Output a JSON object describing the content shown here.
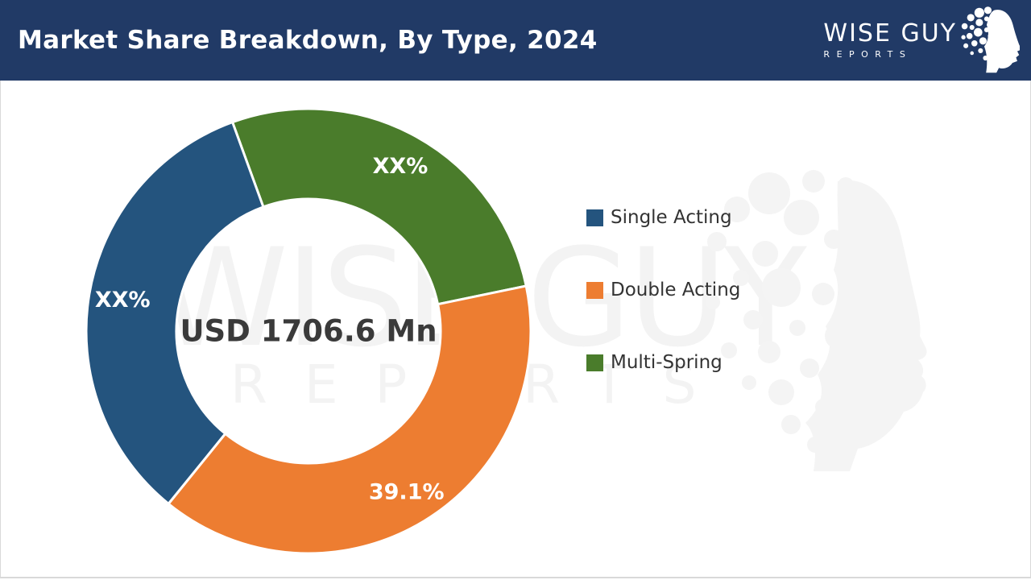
{
  "header": {
    "title": "Market Share Breakdown, By Type, 2024",
    "logo": {
      "line1": "WISE GUY",
      "line2": "REPORTS"
    }
  },
  "watermark": {
    "line1": "WISE GUY",
    "line2": "REPORTS"
  },
  "chart_data": {
    "type": "pie",
    "donut": true,
    "title": "Market Share Breakdown, By Type, 2024",
    "center_label": "USD 1706.6 Mn",
    "start_angle_deg": -20,
    "hole_ratio": 0.59,
    "legend_position": "right",
    "segments": [
      {
        "name": "Multi-Spring",
        "value": 27.3,
        "display_label": "XX%",
        "color": "#4a7c2b"
      },
      {
        "name": "Double Acting",
        "value": 39.1,
        "display_label": "39.1%",
        "color": "#ed7d31"
      },
      {
        "name": "Single Acting",
        "value": 33.6,
        "display_label": "XX%",
        "color": "#24547e"
      }
    ],
    "legend": [
      {
        "label": "Single Acting",
        "color": "#24547e"
      },
      {
        "label": "Double Acting",
        "color": "#ed7d31"
      },
      {
        "label": "Multi-Spring",
        "color": "#4a7c2b"
      }
    ]
  },
  "colors": {
    "header_bg": "#213a66",
    "title_text": "#ffffff",
    "center_text": "#3a3a3a",
    "legend_text": "#333333",
    "watermark": "#f3f3f3",
    "border": "#d9d9d9"
  }
}
